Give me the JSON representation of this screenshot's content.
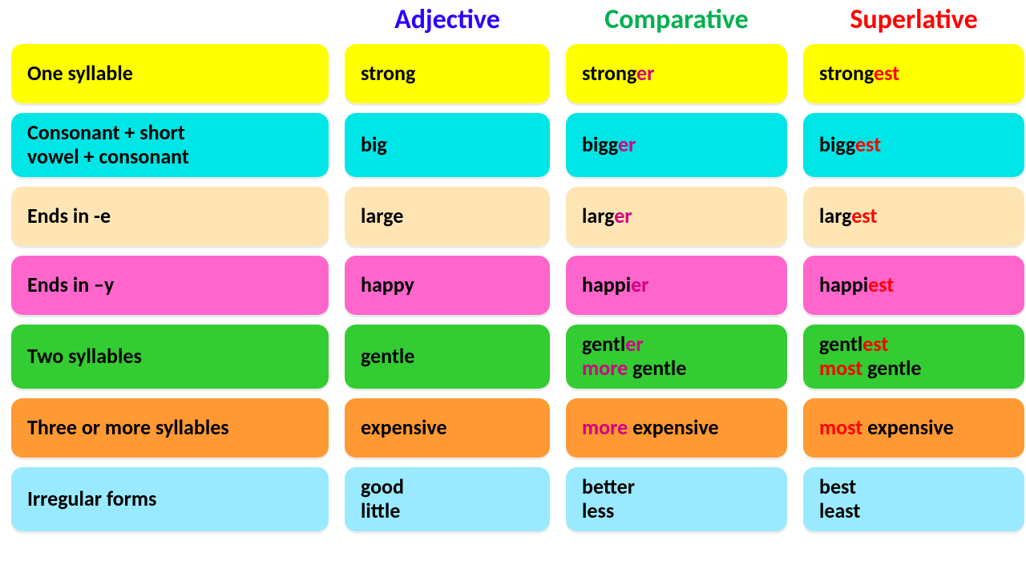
{
  "headers": {
    "adjective": {
      "text": "Adjective",
      "color": "#2a00ff"
    },
    "comparative": {
      "text": "Comparative",
      "color": "#00b050"
    },
    "superlative": {
      "text": "Superlative",
      "color": "#ff0000"
    }
  },
  "colors": {
    "comp_suffix": "#d10082",
    "sup_suffix": "#ff0000"
  },
  "rows": [
    {
      "bg": "#ffff00",
      "rule": "One syllable",
      "adj": "strong",
      "comp_root": "strong",
      "comp_suffix": "er",
      "sup_root": "strong",
      "sup_suffix": "est"
    },
    {
      "bg": "#00e6e6",
      "rule_line1": "Consonant + short",
      "rule_line2": "vowel + consonant",
      "adj": "big",
      "comp_root": "bigg",
      "comp_suffix": "er",
      "sup_root": "bigg",
      "sup_suffix": "est"
    },
    {
      "bg": "#ffe5b4",
      "rule": "Ends in -e",
      "adj": "large",
      "comp_root": "larg",
      "comp_suffix": "er",
      "sup_root": "larg",
      "sup_suffix": "est"
    },
    {
      "bg": "#ff66cc",
      "rule": "Ends in –y",
      "adj": "happy",
      "comp_root": "happi",
      "comp_suffix": "er",
      "sup_root": "happi",
      "sup_suffix": "est"
    },
    {
      "bg": "#33cc33",
      "rule": "Two syllables",
      "adj": "gentle",
      "comp_root": "gentl",
      "comp_suffix": "er",
      "comp_prefix": "more",
      "comp_word": "gentle",
      "sup_root": "gentl",
      "sup_suffix": "est",
      "sup_prefix": "most",
      "sup_word": "gentle"
    },
    {
      "bg": "#ff9933",
      "rule": "Three or more syllables",
      "adj": "expensive",
      "comp_prefix": "more",
      "comp_word": "expensive",
      "sup_prefix": "most",
      "sup_word": "expensive"
    },
    {
      "bg": "#99eaff",
      "rule": "Irregular forms",
      "adj_line1": "good",
      "adj_line2": "little",
      "comp_line1": "better",
      "comp_line2": "less",
      "sup_line1": "best",
      "sup_line2": "least"
    }
  ]
}
